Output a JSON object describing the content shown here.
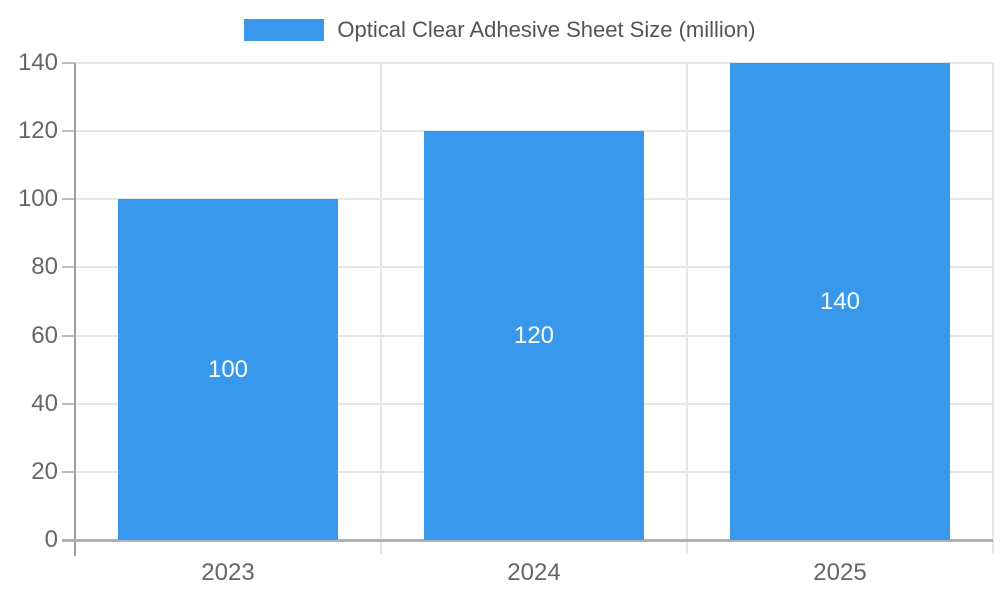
{
  "chart_data": {
    "type": "bar",
    "title": "Optical Clear Adhesive Sheet Size (million)",
    "legend_position": "top",
    "categories": [
      "2023",
      "2024",
      "2025"
    ],
    "series": [
      {
        "name": "Optical Clear Adhesive Sheet Size (million)",
        "values": [
          100,
          120,
          140
        ]
      }
    ],
    "data_labels": [
      "100",
      "120",
      "140"
    ],
    "ytick_labels": [
      "0",
      "20",
      "40",
      "60",
      "80",
      "100",
      "120",
      "140"
    ],
    "yticks": [
      0,
      20,
      40,
      60,
      80,
      100,
      120,
      140
    ],
    "ylim": [
      0,
      140
    ],
    "xlabel": "",
    "ylabel": "",
    "grid": true,
    "colors": {
      "bar": "#3898EC",
      "data_label": "#FFFFFF",
      "axis_label": "#666666",
      "legend_text": "#555555",
      "gridline": "#E6E6E6",
      "axis_line": "#B0B0B0",
      "y_axis_line": "#9E9E9E"
    }
  }
}
